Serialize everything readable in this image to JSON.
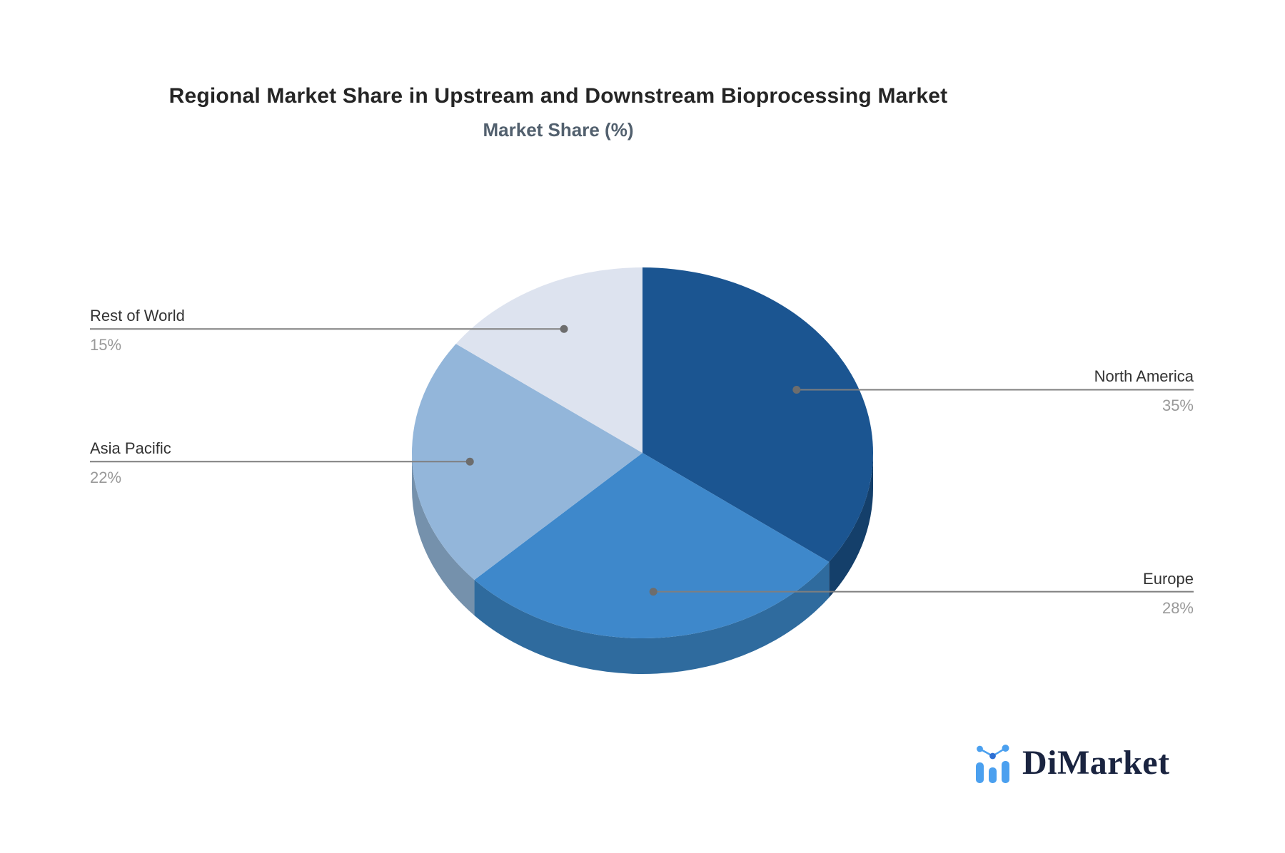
{
  "title": "Regional Market Share in Upstream and Downstream Bioprocessing Market",
  "subtitle": "Market Share (%)",
  "logo": {
    "text": "DiMarket",
    "icon": "bars-and-trendline-chart-icon"
  },
  "chart_data": {
    "type": "pie",
    "style": "3d-pie-with-depth",
    "title": "Regional Market Share in Upstream and Downstream Bioprocessing Market",
    "subtitle": "Market Share (%)",
    "unit": "%",
    "start_angle": "12-o-clock",
    "direction": "clockwise",
    "labels_position": "outside-callout",
    "leader_line_color": "#7f7f7f",
    "leader_dot_color": "#6d6d6d",
    "label_color": "#333333",
    "pct_color": "#999999",
    "slices": [
      {
        "label": "North America",
        "value": 35,
        "pct_label": "35%",
        "color": "#1b5591",
        "side_color": "#143f6a",
        "callout_side": "right"
      },
      {
        "label": "Europe",
        "value": 28,
        "pct_label": "28%",
        "color": "#3e88cb",
        "side_color": "#2f6b9e",
        "callout_side": "right"
      },
      {
        "label": "Asia Pacific",
        "value": 22,
        "pct_label": "22%",
        "color": "#93b6da",
        "side_color": "#7591ac",
        "callout_side": "left"
      },
      {
        "label": "Rest of World",
        "value": 15,
        "pct_label": "15%",
        "color": "#dde3ef",
        "side_color": "#b6bdc9",
        "callout_side": "left"
      }
    ]
  }
}
